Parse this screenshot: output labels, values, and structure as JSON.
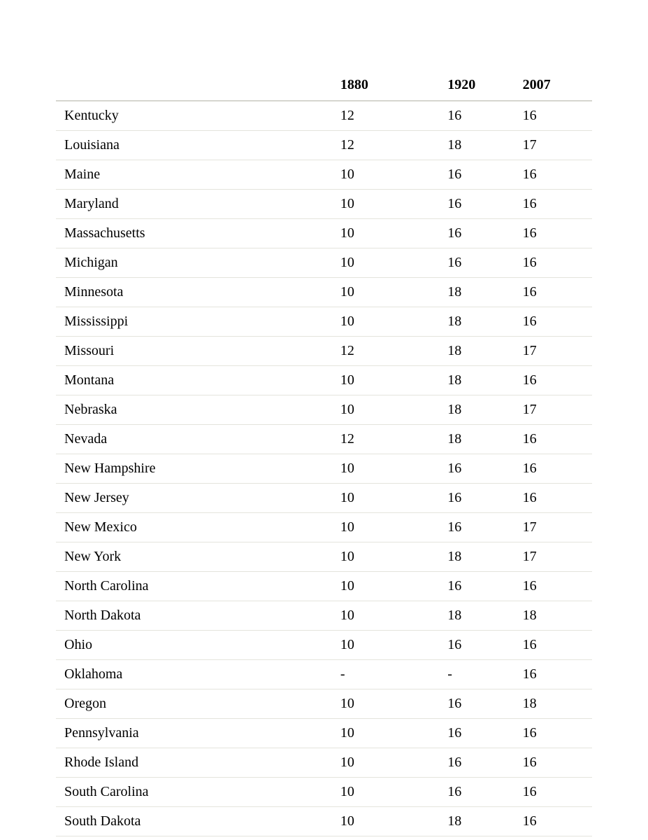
{
  "table": {
    "type": "table",
    "background_color": "#ffffff",
    "header_border_color": "#d6d6cf",
    "row_border_color": "#e4e4dd",
    "text_color": "#000000",
    "font_family": "Times New Roman",
    "body_fontsize": 20,
    "header_fontsize": 20,
    "header_fontweight": "bold",
    "column_widths_pct": [
      52,
      20,
      14,
      14
    ],
    "columns": [
      "",
      "1880",
      "1920",
      "2007"
    ],
    "rows": [
      [
        "Kentucky",
        "12",
        "16",
        "16"
      ],
      [
        "Louisiana",
        "12",
        "18",
        "17"
      ],
      [
        "Maine",
        "10",
        "16",
        "16"
      ],
      [
        "Maryland",
        "10",
        "16",
        "16"
      ],
      [
        "Massachusetts",
        "10",
        "16",
        "16"
      ],
      [
        "Michigan",
        "10",
        "16",
        "16"
      ],
      [
        "Minnesota",
        "10",
        "18",
        "16"
      ],
      [
        "Mississippi",
        "10",
        "18",
        "16"
      ],
      [
        "Missouri",
        "12",
        "18",
        "17"
      ],
      [
        "Montana",
        "10",
        "18",
        "16"
      ],
      [
        "Nebraska",
        "10",
        "18",
        "17"
      ],
      [
        "Nevada",
        "12",
        "18",
        "16"
      ],
      [
        "New Hampshire",
        "10",
        "16",
        "16"
      ],
      [
        "New Jersey",
        "10",
        "16",
        "16"
      ],
      [
        "New Mexico",
        "10",
        "16",
        "17"
      ],
      [
        "New York",
        "10",
        "18",
        "17"
      ],
      [
        "North Carolina",
        "10",
        "16",
        "16"
      ],
      [
        "North Dakota",
        "10",
        "18",
        "18"
      ],
      [
        "Ohio",
        "10",
        "16",
        "16"
      ],
      [
        "Oklahoma",
        "-",
        "-",
        "16"
      ],
      [
        "Oregon",
        "10",
        "16",
        "18"
      ],
      [
        "Pennsylvania",
        "10",
        "16",
        "16"
      ],
      [
        "Rhode Island",
        "10",
        "16",
        "16"
      ],
      [
        "South Carolina",
        "10",
        "16",
        "16"
      ],
      [
        "South Dakota",
        "10",
        "18",
        "16"
      ]
    ]
  }
}
